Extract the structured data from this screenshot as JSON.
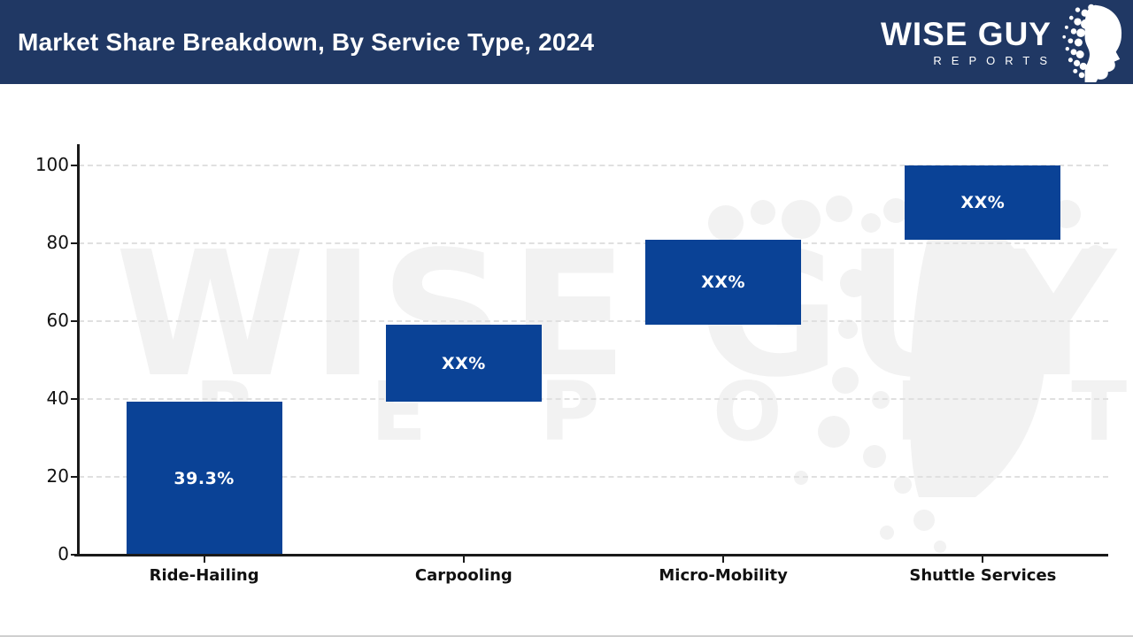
{
  "header": {
    "title": "Market Share Breakdown, By Service Type, 2024",
    "bg_color": "#203864",
    "logo": {
      "brand_line1": "WISE GUY",
      "brand_line2": "REPORTS"
    }
  },
  "watermark": {
    "text_line1": "WISE GUY",
    "text_line2": "R E P O R T S"
  },
  "chart_data": {
    "type": "bar",
    "subtype": "waterfall",
    "title": "Market Share Breakdown, By Service Type, 2024",
    "xlabel": "",
    "ylabel": "",
    "categories": [
      "Ride-Hailing",
      "Carpooling",
      "Micro-Mobility",
      "Shuttle Services"
    ],
    "segments": [
      {
        "category": "Ride-Hailing",
        "start": 0,
        "end": 39.3,
        "value": 39.3,
        "label": "39.3%"
      },
      {
        "category": "Carpooling",
        "start": 39.3,
        "end": 59.1,
        "value": 19.8,
        "label": "XX%"
      },
      {
        "category": "Micro-Mobility",
        "start": 59.1,
        "end": 80.9,
        "value": 21.8,
        "label": "XX%"
      },
      {
        "category": "Shuttle Services",
        "start": 80.9,
        "end": 100,
        "value": 19.1,
        "label": "XX%"
      }
    ],
    "yticks": [
      0,
      20,
      40,
      60,
      80,
      100
    ],
    "ylim": [
      0,
      105
    ],
    "grid": "horizontal-dashed",
    "legend": "none",
    "bar_color": "#0a4296",
    "bar_label_color": "#ffffff",
    "axis_color": "#1a1a1a",
    "gridline_color": "#e0e0e0"
  }
}
